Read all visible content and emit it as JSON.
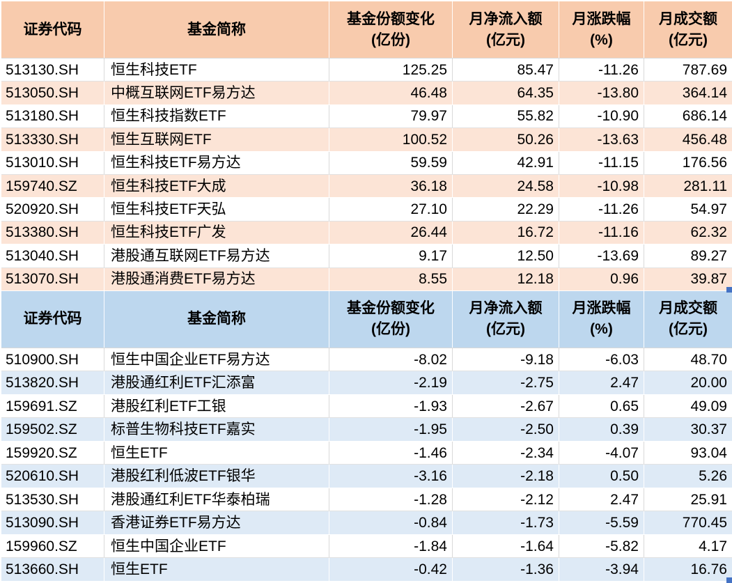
{
  "colors": {
    "table1_header_bg": "#F8CBAD",
    "table1_row_alt_bg": "#FCE4D6",
    "table2_header_bg": "#BDD7EE",
    "table2_row_alt_bg": "#DEEAF6",
    "gridline": "#D9D9D9",
    "selection_handle": "#4472C4",
    "text": "#000000"
  },
  "tables": [
    {
      "name": "monthly-inflow-funds",
      "theme": "peach",
      "columns": [
        {
          "title": "证券代码",
          "unit": ""
        },
        {
          "title": "基金简称",
          "unit": ""
        },
        {
          "title": "基金份额变化",
          "unit": "(亿份)"
        },
        {
          "title": "月净流入额",
          "unit": "(亿元)"
        },
        {
          "title": "月涨跌幅",
          "unit": "(%)"
        },
        {
          "title": "月成交额",
          "unit": "(亿元)"
        }
      ],
      "rows": [
        [
          "513130.SH",
          "恒生科技ETF",
          "125.25",
          "85.47",
          "-11.26",
          "787.69"
        ],
        [
          "513050.SH",
          "中概互联网ETF易方达",
          "46.48",
          "64.35",
          "-13.80",
          "364.14"
        ],
        [
          "513180.SH",
          "恒生科技指数ETF",
          "79.97",
          "55.82",
          "-10.90",
          "686.14"
        ],
        [
          "513330.SH",
          "恒生互联网ETF",
          "100.52",
          "50.26",
          "-13.63",
          "456.48"
        ],
        [
          "513010.SH",
          "恒生科技ETF易方达",
          "59.59",
          "42.91",
          "-11.15",
          "176.56"
        ],
        [
          "159740.SZ",
          "恒生科技ETF大成",
          "36.18",
          "24.58",
          "-10.98",
          "281.11"
        ],
        [
          "520920.SH",
          "恒生科技ETF天弘",
          "27.10",
          "22.29",
          "-11.26",
          "54.97"
        ],
        [
          "513380.SH",
          "恒生科技ETF广发",
          "26.44",
          "16.72",
          "-11.16",
          "62.32"
        ],
        [
          "513040.SH",
          "港股通互联网ETF易方达",
          "9.17",
          "12.50",
          "-13.69",
          "89.27"
        ],
        [
          "513070.SH",
          "港股通消费ETF易方达",
          "8.55",
          "12.18",
          "0.96",
          "39.87"
        ]
      ]
    },
    {
      "name": "monthly-outflow-funds",
      "theme": "blue",
      "columns": [
        {
          "title": "证券代码",
          "unit": ""
        },
        {
          "title": "基金简称",
          "unit": ""
        },
        {
          "title": "基金份额变化",
          "unit": "(亿份)"
        },
        {
          "title": "月净流入额",
          "unit": "(亿元)"
        },
        {
          "title": "月涨跌幅",
          "unit": "(%)"
        },
        {
          "title": "月成交额",
          "unit": "(亿元)"
        }
      ],
      "rows": [
        [
          "510900.SH",
          "恒生中国企业ETF易方达",
          "-8.02",
          "-9.18",
          "-6.03",
          "48.70"
        ],
        [
          "513820.SH",
          "港股通红利ETF汇添富",
          "-2.19",
          "-2.75",
          "2.47",
          "20.00"
        ],
        [
          "159691.SZ",
          "港股红利ETF工银",
          "-1.93",
          "-2.67",
          "0.65",
          "49.09"
        ],
        [
          "159502.SZ",
          "标普生物科技ETF嘉实",
          "-1.95",
          "-2.50",
          "0.39",
          "30.37"
        ],
        [
          "159920.SZ",
          "恒生ETF",
          "-1.46",
          "-2.34",
          "-4.07",
          "93.04"
        ],
        [
          "520610.SH",
          "港股红利低波ETF银华",
          "-3.16",
          "-2.18",
          "0.50",
          "5.26"
        ],
        [
          "513530.SH",
          "港股通红利ETF华泰柏瑞",
          "-1.28",
          "-2.12",
          "2.47",
          "25.91"
        ],
        [
          "513090.SH",
          "香港证券ETF易方达",
          "-0.84",
          "-1.73",
          "-5.59",
          "770.45"
        ],
        [
          "159960.SZ",
          "恒生中国企业ETF",
          "-1.84",
          "-1.64",
          "-5.82",
          "4.17"
        ],
        [
          "513660.SH",
          "恒生ETF",
          "-0.42",
          "-1.36",
          "-3.94",
          "16.76"
        ]
      ]
    }
  ],
  "cell_names": [
    "security-code-cell",
    "fund-name-cell",
    "share-change-cell",
    "net-inflow-cell",
    "pct-change-cell",
    "turnover-cell"
  ]
}
